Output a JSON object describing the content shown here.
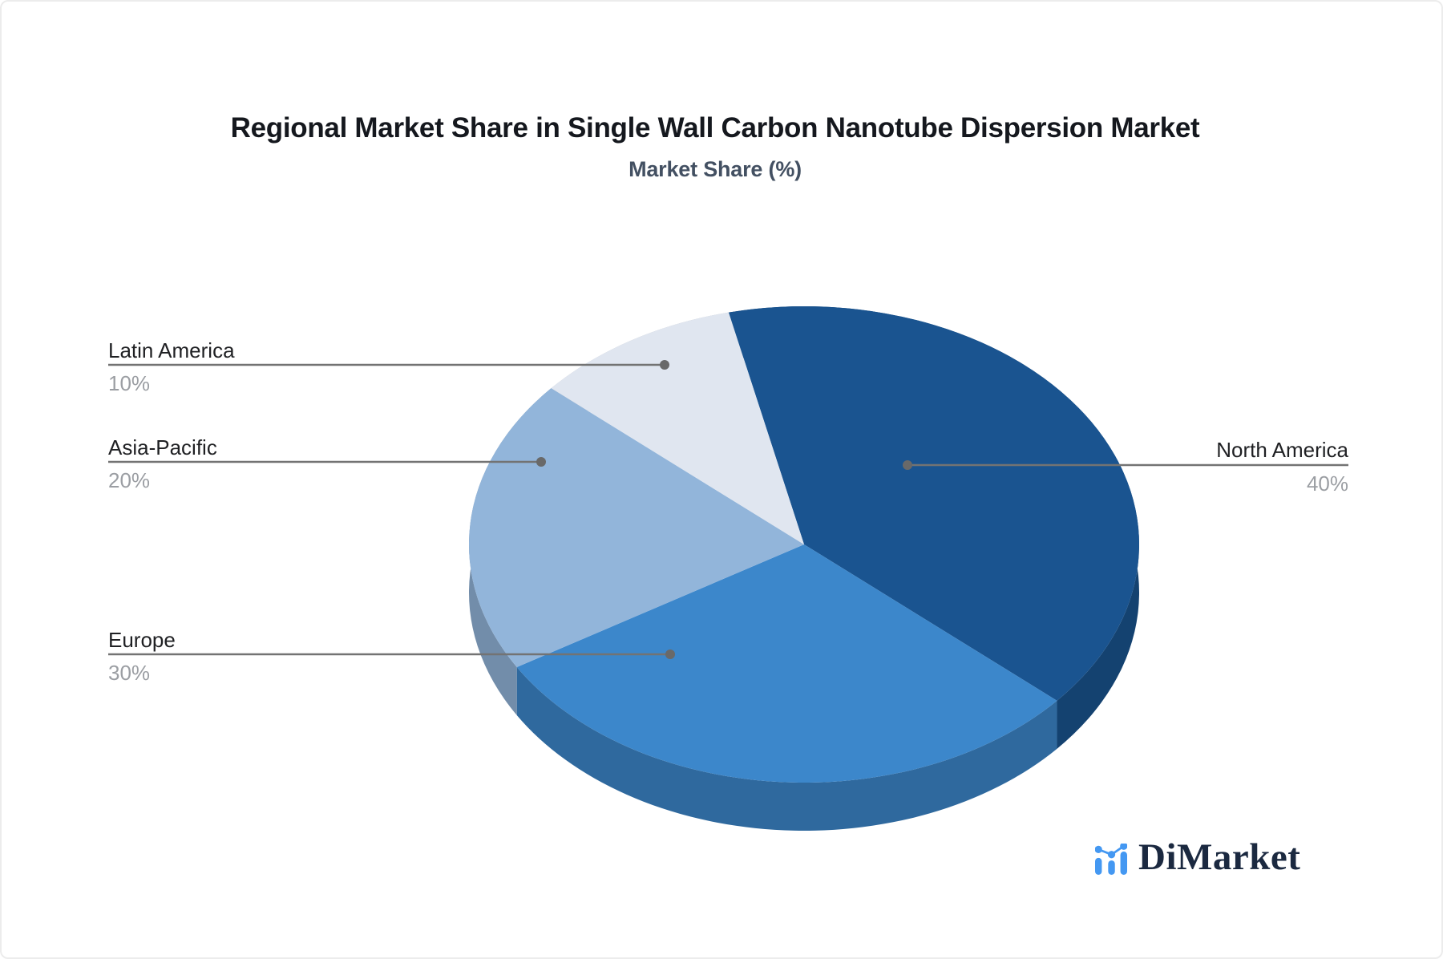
{
  "chart_data": {
    "type": "pie",
    "effect": "3d",
    "title": "Regional Market Share in Single Wall Carbon Nanotube Dispersion Market",
    "subtitle": "Market Share (%)",
    "unit": "%",
    "rotation_deg": -13,
    "legend_position": "callout-labels",
    "slices": [
      {
        "label": "North America",
        "value": 40,
        "pct_label": "40%",
        "color": "#1a5490"
      },
      {
        "label": "Europe",
        "value": 30,
        "pct_label": "30%",
        "color": "#3c87cb"
      },
      {
        "label": "Asia-Pacific",
        "value": 20,
        "pct_label": "20%",
        "color": "#92b5da"
      },
      {
        "label": "Latin America",
        "value": 10,
        "pct_label": "10%",
        "color": "#e0e6f0"
      }
    ],
    "connector_color": "#737373"
  },
  "brand": {
    "name": "DiMarket",
    "icon": "bar-line-chart-icon",
    "icon_color": "#4498f2",
    "text_color": "#1b2940"
  }
}
